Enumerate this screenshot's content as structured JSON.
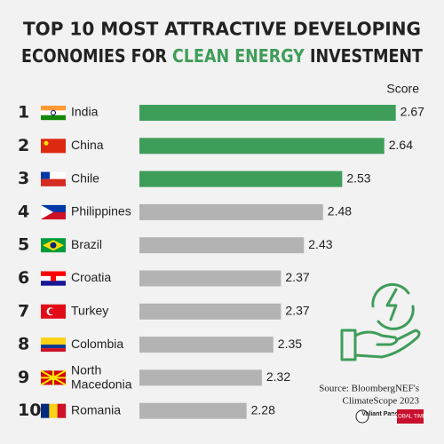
{
  "chart_data": {
    "type": "bar",
    "title": {
      "line1": "TOP 10 MOST ATTRACTIVE DEVELOPING",
      "line2_start": "ECONOMIES FOR",
      "highlight": "CLEAN ENERGY",
      "line2_end": "INVESTMENT"
    },
    "value_label": "Score",
    "ranks": [
      1,
      2,
      3,
      4,
      5,
      6,
      7,
      8,
      9,
      10
    ],
    "categories": [
      "India",
      "China",
      "Chile",
      "Philippines",
      "Brazil",
      "Croatia",
      "Turkey",
      "Colombia",
      "North Macedonia",
      "Romania"
    ],
    "values": [
      2.67,
      2.64,
      2.53,
      2.48,
      2.43,
      2.37,
      2.37,
      2.35,
      2.32,
      2.28
    ],
    "colors": [
      "#3f9d5a",
      "#3f9d5a",
      "#3f9d5a",
      "#b3b3b3",
      "#b3b3b3",
      "#b3b3b3",
      "#b3b3b3",
      "#b3b3b3",
      "#b3b3b3",
      "#b3b3b3"
    ],
    "xlim": [
      2,
      2.7
    ],
    "source": [
      "Source: BloombergNEF's",
      "ClimateScope 2023"
    ],
    "logos": [
      "Valiant Panda",
      "GLOBAL TIMES"
    ]
  }
}
